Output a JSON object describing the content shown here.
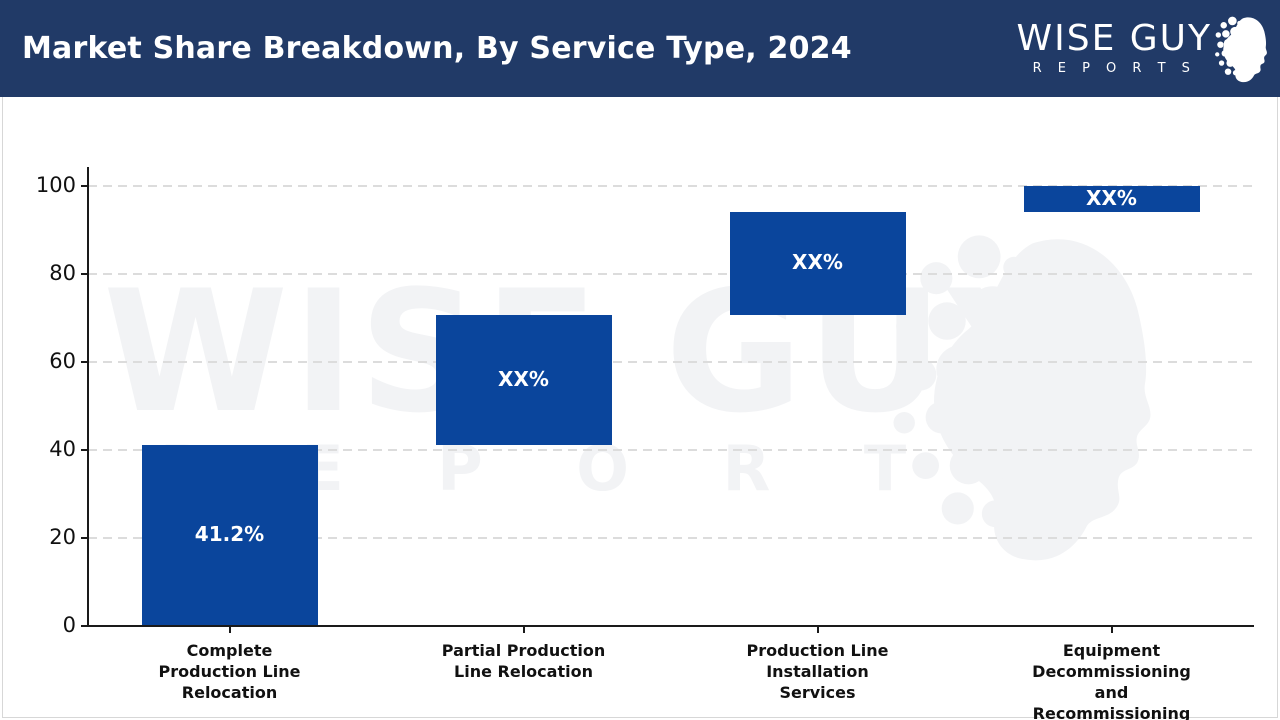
{
  "header": {
    "title": "Market Share Breakdown, By Service Type, 2024",
    "logo": {
      "wordmark": "WISE GUY",
      "tagline": "R E P O R T S"
    }
  },
  "watermark": {
    "wordmark": "WISE GUY.",
    "tagline": "R E P O R T S"
  },
  "chart_data": {
    "type": "bar",
    "subtype": "waterfall-stacked-percentage",
    "title": "Market Share Breakdown, By Service Type, 2024",
    "categories": [
      "Complete\nProduction Line\nRelocation",
      "Partial Production\nLine Relocation",
      "Production Line\nInstallation\nServices",
      "Equipment\nDecommissioning\nand\nRecommissioning"
    ],
    "series": [
      {
        "name": "Market Share %",
        "segments": [
          {
            "start": 0,
            "end": 41.2,
            "value": 41.2,
            "label": "41.2%"
          },
          {
            "start": 41.2,
            "end": 70.7,
            "value": 29.5,
            "label": "XX%"
          },
          {
            "start": 70.7,
            "end": 94.1,
            "value": 23.4,
            "label": "XX%"
          },
          {
            "start": 94.1,
            "end": 100,
            "value": 5.9,
            "label": "XX%"
          }
        ]
      }
    ],
    "xlabel": "",
    "ylabel": "",
    "ylim": [
      0,
      100
    ],
    "yticks": [
      0,
      20,
      40,
      60,
      80,
      100
    ],
    "grid": "horizontal-dashed",
    "legend": "none",
    "bar_color": "#0a459c",
    "bar_label_color": "#ffffff"
  },
  "colors": {
    "header_bg": "#213a67",
    "bar": "#0a459c",
    "grid": "#dcdcdc",
    "axis": "#1a1a1a",
    "watermark": "#f2f3f5",
    "frame_border": "#d7d7d7"
  }
}
